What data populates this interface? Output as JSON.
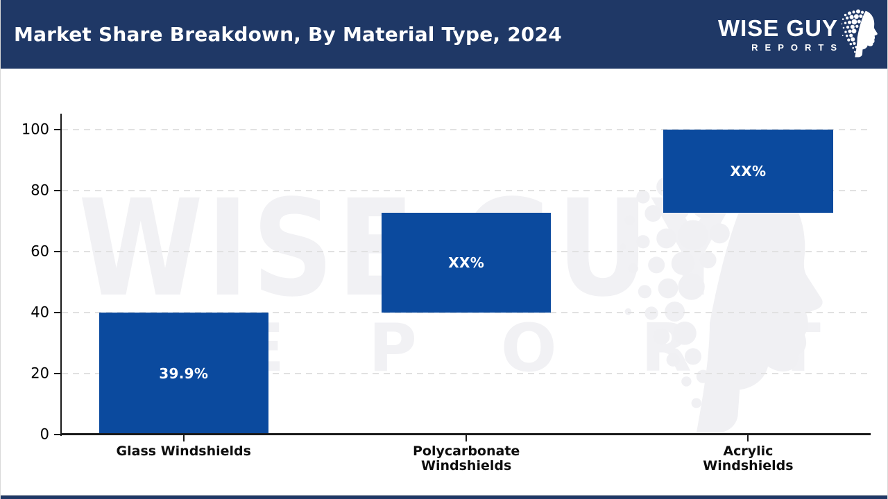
{
  "header": {
    "title": "Market Share Breakdown, By Material Type, 2024",
    "background_color": "#1f3866"
  },
  "logo": {
    "line1": "WISE GUY",
    "line2": "REPORTS"
  },
  "watermark": {
    "line1": "WISE GUY",
    "line2": "R E P O R T S"
  },
  "chart_data": {
    "type": "bar",
    "variant": "stacked-waterfall",
    "title": "Market Share Breakdown, By Material Type, 2024",
    "xlabel": "",
    "ylabel": "",
    "categories": [
      "Glass Windshields",
      "Polycarbonate\nWindshields",
      "Acrylic\nWindshields"
    ],
    "bars": [
      {
        "category": "Glass Windshields",
        "start": 0,
        "end": 39.9,
        "label": "39.9%"
      },
      {
        "category": "Polycarbonate Windshields",
        "start": 39.9,
        "end": 72.7,
        "label": "XX%"
      },
      {
        "category": "Acrylic Windshields",
        "start": 72.7,
        "end": 100,
        "label": "XX%"
      }
    ],
    "yticks": [
      0,
      20,
      40,
      60,
      80,
      100
    ],
    "ylim": [
      0,
      105.2
    ],
    "grid": "horizontal-dashed",
    "legend": "none",
    "bar_color": "#0b4a9e",
    "bar_label_color": "#ffffff",
    "centers_frac": [
      0.151,
      0.501,
      0.85
    ],
    "bar_width_frac": 0.21
  }
}
